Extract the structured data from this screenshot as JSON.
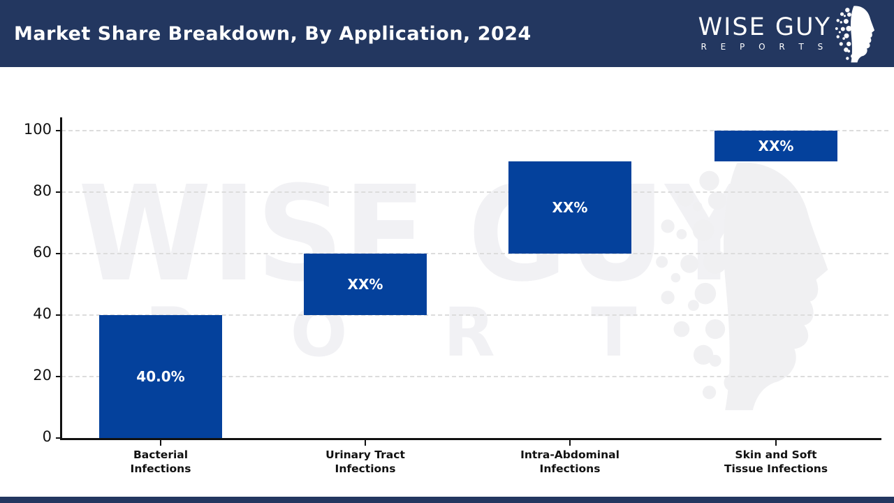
{
  "header": {
    "title": "Market Share Breakdown, By Application, 2024",
    "bg_color": "#233760",
    "logo": {
      "line1": "WISE GUY",
      "line2": "R E P O R T S"
    }
  },
  "watermark": {
    "line1": "WISE GUY.",
    "line2": "P O R T S"
  },
  "chart_data": {
    "type": "bar",
    "variant": "waterfall",
    "title": "Market Share Breakdown, By Application, 2024",
    "categories": [
      "Bacterial Infections",
      "Urinary Tract Infections",
      "Intra-Abdominal Infections",
      "Skin and Soft Tissue Infections"
    ],
    "category_lines": [
      [
        "Bacterial",
        "Infections"
      ],
      [
        "Urinary Tract",
        "Infections"
      ],
      [
        "Intra-Abdominal",
        "Infections"
      ],
      [
        "Skin and Soft",
        "Tissue Infections"
      ]
    ],
    "segments": [
      {
        "start": 0,
        "end": 40,
        "value": 40,
        "label": "40.0%"
      },
      {
        "start": 40,
        "end": 60,
        "value": 20,
        "label": "XX%"
      },
      {
        "start": 60,
        "end": 90,
        "value": 30,
        "label": "XX%"
      },
      {
        "start": 90,
        "end": 100,
        "value": 10,
        "label": "XX%"
      }
    ],
    "ylim": [
      0,
      100
    ],
    "yticks": [
      0,
      20,
      40,
      60,
      80,
      100
    ],
    "grid": "horizontal-dashed",
    "legend": "none",
    "bar_color": "#04419C",
    "bar_label_color": "#FFFFFF",
    "axis_color": "#111111",
    "gridline_color": "#DCDCDC"
  }
}
